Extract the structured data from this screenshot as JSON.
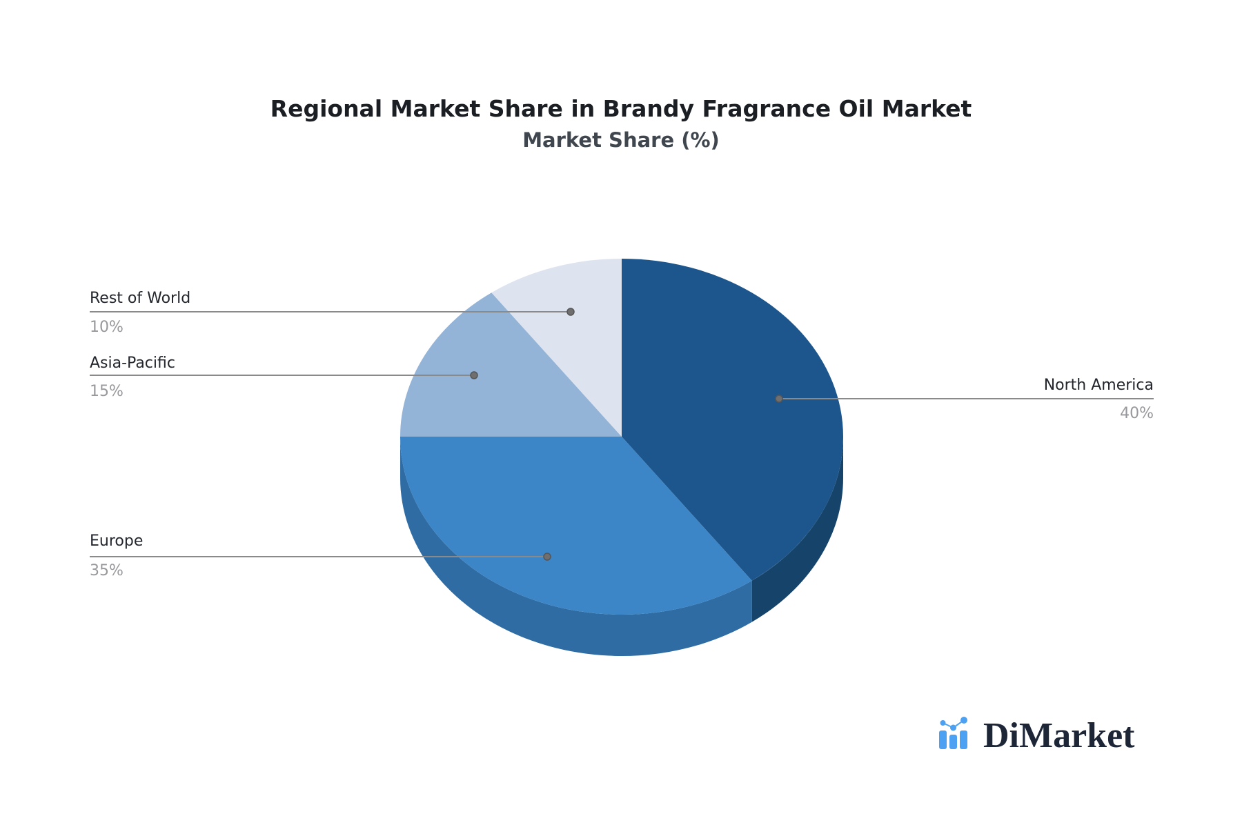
{
  "header": {
    "title": "Regional Market Share in Brandy Fragrance Oil Market",
    "subtitle": "Market Share (%)"
  },
  "chart_data": {
    "type": "pie",
    "style": "3d",
    "title": "Regional Market Share in Brandy Fragrance Oil Market",
    "subtitle": "Market Share (%)",
    "unit": "%",
    "direction": "clockwise",
    "start_angle_deg": 0,
    "legend_position": "callout-labels",
    "segments": [
      {
        "label": "North America",
        "value": 40,
        "percent_label": "40%",
        "color": "#1d568c",
        "side_color": "#164369",
        "callout_side": "right"
      },
      {
        "label": "Europe",
        "value": 35,
        "percent_label": "35%",
        "color": "#3c86c8",
        "side_color": "#2e6ca3",
        "callout_side": "left"
      },
      {
        "label": "Asia-Pacific",
        "value": 15,
        "percent_label": "15%",
        "color": "#93b3d7",
        "side_color": "#7b9cc2",
        "callout_side": "left"
      },
      {
        "label": "Rest of World",
        "value": 10,
        "percent_label": "10%",
        "color": "#dde4f0",
        "side_color": "#bcc7da",
        "callout_side": "left"
      }
    ]
  },
  "colors": {
    "leader_line": "#8a8a8a",
    "leader_dot": "#6f6f6f",
    "leader_dot_ring": "#555555",
    "title": "#1b1e23",
    "subtitle": "#3f464e",
    "label": "#23272d",
    "percent": "#97989b",
    "background": "#ffffff"
  },
  "brand": {
    "name": "DiMarket",
    "accent": "#4da1f2",
    "text_color": "#1c2637",
    "icon": "bar-chart-logo-icon"
  }
}
